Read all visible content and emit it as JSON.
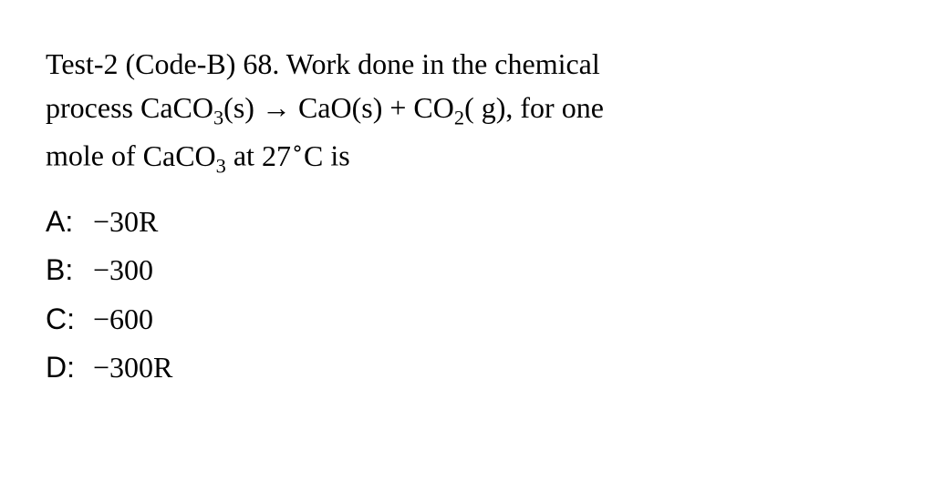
{
  "question": {
    "prefix": "Test-2 (Code-B) 68. Work done in the chemical",
    "process_word": "process",
    "reactant": "CaCO",
    "reactant_sub": "3",
    "reactant_state": "(s)",
    "arrow": "→",
    "product1": "CaO(s)",
    "plus": "+",
    "product2": "CO",
    "product2_sub": "2",
    "product2_state": "( g)",
    "for_one": ", for one",
    "mole_of": "mole of",
    "compound": "CaCO",
    "compound_sub": "3",
    "at": "at",
    "temp": "27",
    "temp_unit": "C",
    "is": "is"
  },
  "options": {
    "a": {
      "label": "A:",
      "value": "−30R"
    },
    "b": {
      "label": "B:",
      "value": "−300"
    },
    "c": {
      "label": "C:",
      "value": "−600"
    },
    "d": {
      "label": "D:",
      "value": "−300R"
    }
  },
  "style": {
    "text_color": "#000000",
    "background_color": "#ffffff",
    "font_size_main": 32,
    "line_height": 1.5
  }
}
